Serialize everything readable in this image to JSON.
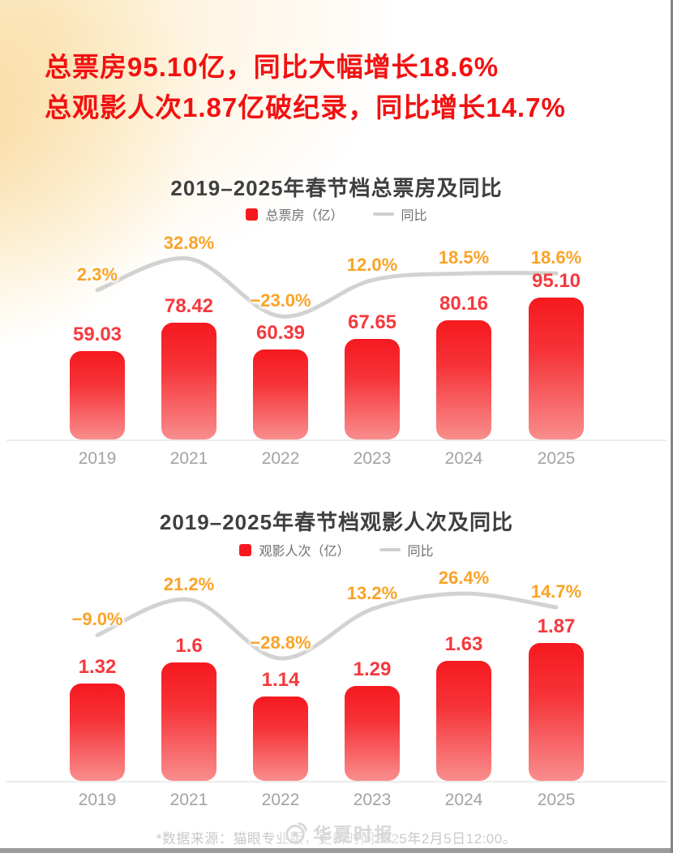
{
  "headline": {
    "line1": "总票房95.10亿，同比大幅增长18.6%",
    "line2": "总观影人次1.87亿破纪录，同比增长14.7%"
  },
  "chart_data": [
    {
      "type": "bar",
      "title": "2019–2025年春节档总票房及同比",
      "categories": [
        "2019",
        "2021",
        "2022",
        "2023",
        "2024",
        "2025"
      ],
      "series": [
        {
          "name": "总票房（亿）",
          "type": "bar",
          "values": [
            59.03,
            78.42,
            60.39,
            67.65,
            80.16,
            95.1
          ],
          "labels": [
            "59.03",
            "78.42",
            "60.39",
            "67.65",
            "80.16",
            "95.10"
          ]
        },
        {
          "name": "同比",
          "type": "line",
          "values": [
            2.3,
            32.8,
            -23.0,
            12.0,
            18.5,
            18.6
          ],
          "labels": [
            "2.3%",
            "32.8%",
            "−23.0%",
            "12.0%",
            "18.5%",
            "18.6%"
          ]
        }
      ],
      "ylim": [
        0,
        140
      ],
      "grid": false,
      "legend_position": "top",
      "value_labels": true
    },
    {
      "type": "bar",
      "title": "2019–2025年春节档观影人次及同比",
      "categories": [
        "2019",
        "2021",
        "2022",
        "2023",
        "2024",
        "2025"
      ],
      "series": [
        {
          "name": "观影人次（亿）",
          "type": "bar",
          "values": [
            1.32,
            1.6,
            1.14,
            1.29,
            1.63,
            1.87
          ],
          "labels": [
            "1.32",
            "1.6",
            "1.14",
            "1.29",
            "1.63",
            "1.87"
          ]
        },
        {
          "name": "同比",
          "type": "line",
          "values": [
            -9.0,
            21.2,
            -28.8,
            13.2,
            26.4,
            14.7
          ],
          "labels": [
            "−9.0%",
            "21.2%",
            "−28.8%",
            "13.2%",
            "26.4%",
            "14.7%"
          ]
        }
      ],
      "ylim": [
        0,
        2.8
      ],
      "grid": false,
      "legend_position": "top",
      "value_labels": true
    }
  ],
  "footer": {
    "note": "*数据来源：猫眼专业版，更新时间2025年2月5日12:00。",
    "watermark": "华夏时报"
  },
  "colors": {
    "headline": "#F21111",
    "title": "#3F3F3F",
    "bar_top": "#F5191F",
    "bar_bottom": "#F98D8D",
    "value_label": "#F5393E",
    "pct_label": "#F9A326",
    "trend_line": "#D2D2D2",
    "axis_label": "#A3A3A3",
    "legend_text": "#6F6F6F",
    "footer_text": "#C9C9C9",
    "watermark": "#D8D8D8"
  }
}
